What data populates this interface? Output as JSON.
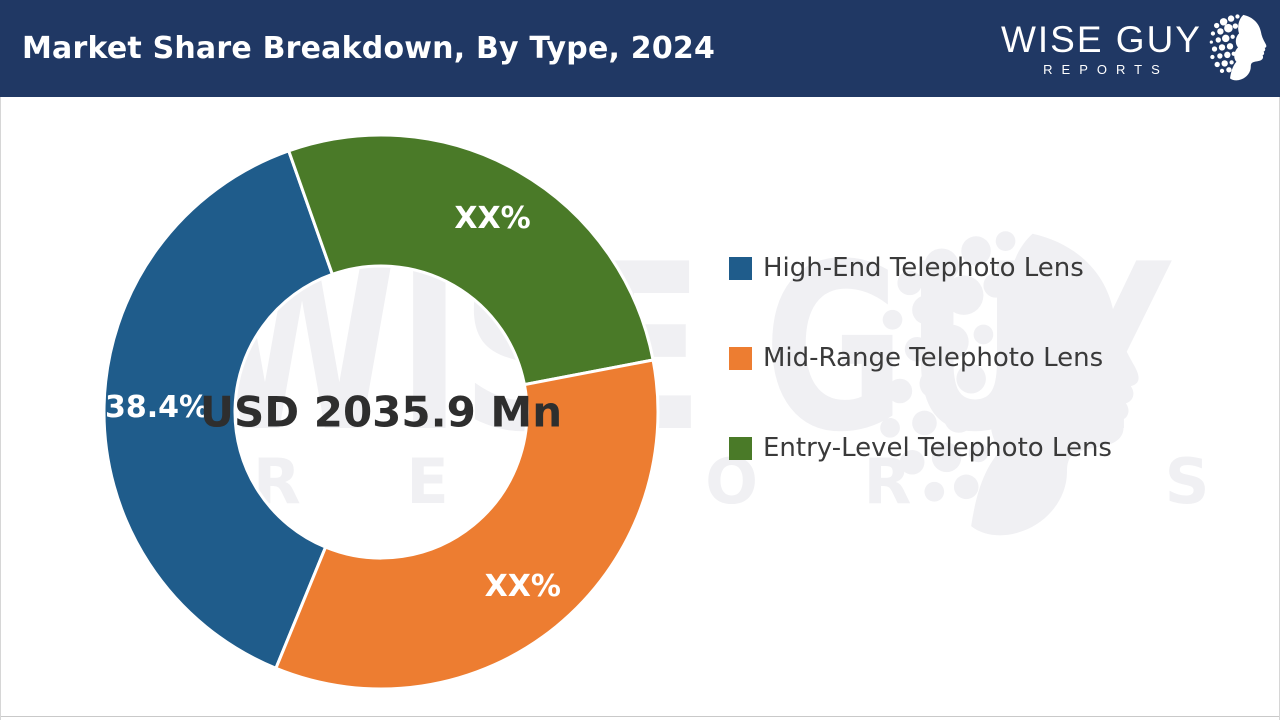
{
  "header": {
    "title": "Market Share Breakdown, By Type, 2024",
    "logo": {
      "line1": "WISE GUY",
      "line2": "REPORTS"
    }
  },
  "watermark": {
    "word": "WISE GUY",
    "reports": "R E P O R T S"
  },
  "chart_data": {
    "type": "pie",
    "subtype": "donut",
    "title": "Market Share Breakdown, By Type, 2024",
    "center_label": "USD 2035.9 Mn",
    "start_rotation_deg": 202.3,
    "slices": [
      {
        "name": "High-End Telephoto Lens",
        "value_pct": 38.4,
        "label": "38.4%",
        "color": "#1f5c8b"
      },
      {
        "name": "Entry-Level Telephoto Lens",
        "value_pct": 27.4,
        "label": "XX%",
        "color": "#4a7a28"
      },
      {
        "name": "Mid-Range Telephoto Lens",
        "value_pct": 34.2,
        "label": "XX%",
        "color": "#ed7d31"
      }
    ],
    "legend_position": "right",
    "notes": "XX% slices are masked values in the source image"
  },
  "legend": {
    "items": [
      {
        "label": "High-End Telephoto Lens",
        "color": "#1f5c8b"
      },
      {
        "label": "Mid-Range Telephoto Lens",
        "color": "#ed7d31"
      },
      {
        "label": "Entry-Level Telephoto Lens",
        "color": "#4a7a28"
      }
    ]
  },
  "colors": {
    "header_bg": "#203864",
    "blue": "#1f5c8b",
    "orange": "#ed7d31",
    "green": "#4a7a28",
    "center_text": "#2e2e2e",
    "legend_text": "#3a3a3a",
    "watermark": "#f0f0f3"
  }
}
